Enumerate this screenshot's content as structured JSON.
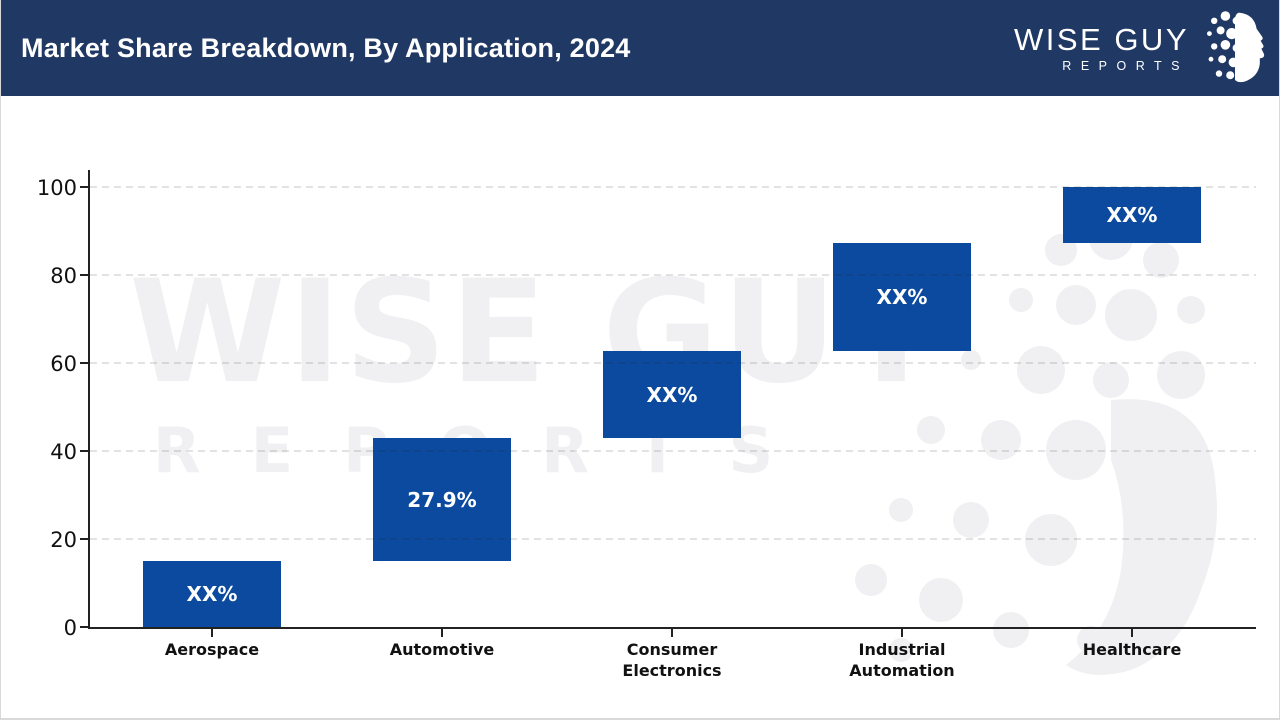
{
  "header": {
    "title": "Market Share Breakdown, By Application, 2024",
    "logo_line1": "WISE GUY",
    "logo_line2": "REPORTS"
  },
  "watermark": {
    "line1": "WISE GUY",
    "line2": "REPORTS"
  },
  "colors": {
    "header_navy": "#203864",
    "header_text": "#ffffff",
    "bar_blue": "#0b4a9e",
    "bar_label": "#ffffff",
    "axis": "#222222",
    "tick_text": "#111111",
    "watermark_gray": "#f0f0f2",
    "frame_gray": "#d9d9d9"
  },
  "chart_data": {
    "type": "bar",
    "subtype": "floating-waterfall",
    "title": "Market Share Breakdown, By Application, 2024",
    "categories": [
      "Aerospace",
      "Automotive",
      "Consumer Electronics",
      "Industrial Automation",
      "Healthcare"
    ],
    "segments": [
      {
        "category": "Aerospace",
        "start": 0,
        "end": 15,
        "label": "XX%"
      },
      {
        "category": "Automotive",
        "start": 15,
        "end": 42.9,
        "label": "27.9%"
      },
      {
        "category": "Consumer Electronics",
        "start": 42.9,
        "end": 62.7,
        "label": "XX%"
      },
      {
        "category": "Industrial Automation",
        "start": 62.7,
        "end": 87.3,
        "label": "XX%"
      },
      {
        "category": "Healthcare",
        "start": 87.3,
        "end": 100,
        "label": "XX%"
      }
    ],
    "xlabel": "",
    "ylabel": "",
    "yticks": [
      0,
      20,
      40,
      60,
      80,
      100
    ],
    "ylim": [
      0,
      105
    ],
    "grid": "dashed horizontal",
    "legend": false,
    "bar_color": "#0b4a9e"
  }
}
